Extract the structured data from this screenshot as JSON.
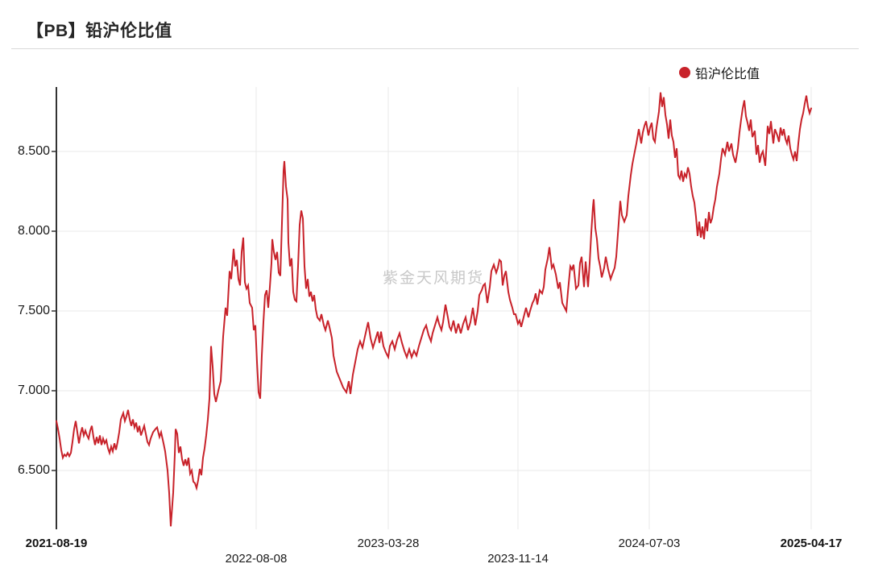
{
  "header": {
    "title": "【PB】铅沪伦比值"
  },
  "legend": {
    "label": "铅沪伦比值",
    "marker_color": "#c8222a"
  },
  "watermark": {
    "text": "紫金天风期货"
  },
  "colors": {
    "line": "#c8222a",
    "grid": "#e9e9e9",
    "axis": "#333333",
    "background": "#ffffff"
  },
  "chart_data": {
    "type": "line",
    "title": "【PB】铅沪伦比值",
    "series_name": "铅沪伦比值",
    "line_color": "#c8222a",
    "grid": true,
    "legend_position": "top-right",
    "x_axis": {
      "kind": "time",
      "start_date": "2021-08-19",
      "end_date": "2025-04-17",
      "d_range": [
        0,
        937
      ],
      "ticks": [
        {
          "label": "2021-08-19",
          "d": 0,
          "bold": true,
          "row": 1
        },
        {
          "label": "2022-08-08",
          "d": 248,
          "bold": false,
          "row": 2
        },
        {
          "label": "2023-03-28",
          "d": 412,
          "bold": false,
          "row": 1
        },
        {
          "label": "2023-11-14",
          "d": 573,
          "bold": false,
          "row": 2
        },
        {
          "label": "2024-07-03",
          "d": 736,
          "bold": false,
          "row": 1
        },
        {
          "label": "2025-04-17",
          "d": 937,
          "bold": true,
          "row": 1
        }
      ]
    },
    "y_axis": {
      "tick_labels": [
        "8.500",
        "8.000",
        "7.500",
        "7.000",
        "6.500"
      ],
      "tick_values": [
        8.5,
        8.0,
        7.5,
        7.0,
        6.5
      ],
      "min": 6.1,
      "max": 8.9
    },
    "points": [
      [
        0,
        6.81
      ],
      [
        2,
        6.76
      ],
      [
        4,
        6.7
      ],
      [
        6,
        6.63
      ],
      [
        8,
        6.58
      ],
      [
        10,
        6.6
      ],
      [
        12,
        6.59
      ],
      [
        14,
        6.61
      ],
      [
        16,
        6.59
      ],
      [
        18,
        6.61
      ],
      [
        20,
        6.68
      ],
      [
        22,
        6.76
      ],
      [
        24,
        6.81
      ],
      [
        26,
        6.74
      ],
      [
        28,
        6.67
      ],
      [
        30,
        6.73
      ],
      [
        32,
        6.77
      ],
      [
        34,
        6.72
      ],
      [
        36,
        6.75
      ],
      [
        38,
        6.72
      ],
      [
        40,
        6.7
      ],
      [
        42,
        6.75
      ],
      [
        44,
        6.78
      ],
      [
        46,
        6.71
      ],
      [
        48,
        6.66
      ],
      [
        50,
        6.71
      ],
      [
        52,
        6.67
      ],
      [
        54,
        6.72
      ],
      [
        56,
        6.66
      ],
      [
        58,
        6.7
      ],
      [
        60,
        6.67
      ],
      [
        62,
        6.69
      ],
      [
        64,
        6.64
      ],
      [
        66,
        6.61
      ],
      [
        68,
        6.65
      ],
      [
        70,
        6.62
      ],
      [
        72,
        6.67
      ],
      [
        74,
        6.63
      ],
      [
        76,
        6.68
      ],
      [
        78,
        6.74
      ],
      [
        80,
        6.82
      ],
      [
        83,
        6.86
      ],
      [
        85,
        6.81
      ],
      [
        87,
        6.84
      ],
      [
        89,
        6.88
      ],
      [
        91,
        6.82
      ],
      [
        93,
        6.78
      ],
      [
        95,
        6.82
      ],
      [
        97,
        6.77
      ],
      [
        99,
        6.8
      ],
      [
        101,
        6.74
      ],
      [
        103,
        6.78
      ],
      [
        105,
        6.72
      ],
      [
        107,
        6.75
      ],
      [
        109,
        6.78
      ],
      [
        111,
        6.73
      ],
      [
        113,
        6.68
      ],
      [
        115,
        6.66
      ],
      [
        117,
        6.7
      ],
      [
        120,
        6.74
      ],
      [
        123,
        6.76
      ],
      [
        125,
        6.77
      ],
      [
        128,
        6.71
      ],
      [
        130,
        6.74
      ],
      [
        133,
        6.67
      ],
      [
        135,
        6.62
      ],
      [
        138,
        6.5
      ],
      [
        140,
        6.36
      ],
      [
        142,
        6.15
      ],
      [
        145,
        6.36
      ],
      [
        147,
        6.6
      ],
      [
        148,
        6.76
      ],
      [
        150,
        6.73
      ],
      [
        152,
        6.61
      ],
      [
        154,
        6.65
      ],
      [
        156,
        6.57
      ],
      [
        158,
        6.53
      ],
      [
        160,
        6.57
      ],
      [
        162,
        6.53
      ],
      [
        164,
        6.58
      ],
      [
        166,
        6.48
      ],
      [
        168,
        6.5
      ],
      [
        170,
        6.43
      ],
      [
        172,
        6.42
      ],
      [
        174,
        6.39
      ],
      [
        176,
        6.44
      ],
      [
        178,
        6.51
      ],
      [
        180,
        6.47
      ],
      [
        182,
        6.58
      ],
      [
        184,
        6.64
      ],
      [
        186,
        6.72
      ],
      [
        188,
        6.82
      ],
      [
        190,
        6.95
      ],
      [
        192,
        7.28
      ],
      [
        194,
        7.15
      ],
      [
        196,
        6.98
      ],
      [
        198,
        6.93
      ],
      [
        201,
        7.0
      ],
      [
        204,
        7.06
      ],
      [
        207,
        7.34
      ],
      [
        210,
        7.52
      ],
      [
        212,
        7.47
      ],
      [
        215,
        7.75
      ],
      [
        217,
        7.7
      ],
      [
        220,
        7.89
      ],
      [
        222,
        7.78
      ],
      [
        224,
        7.82
      ],
      [
        226,
        7.7
      ],
      [
        228,
        7.66
      ],
      [
        230,
        7.87
      ],
      [
        232,
        7.96
      ],
      [
        234,
        7.68
      ],
      [
        236,
        7.64
      ],
      [
        238,
        7.66
      ],
      [
        240,
        7.55
      ],
      [
        243,
        7.52
      ],
      [
        245,
        7.38
      ],
      [
        247,
        7.41
      ],
      [
        249,
        7.18
      ],
      [
        251,
        6.99
      ],
      [
        253,
        6.95
      ],
      [
        255,
        7.22
      ],
      [
        257,
        7.43
      ],
      [
        259,
        7.6
      ],
      [
        261,
        7.63
      ],
      [
        263,
        7.52
      ],
      [
        265,
        7.65
      ],
      [
        267,
        7.8
      ],
      [
        268,
        7.95
      ],
      [
        270,
        7.87
      ],
      [
        272,
        7.82
      ],
      [
        274,
        7.87
      ],
      [
        276,
        7.74
      ],
      [
        278,
        7.72
      ],
      [
        280,
        8.05
      ],
      [
        282,
        8.38
      ],
      [
        283,
        8.44
      ],
      [
        285,
        8.28
      ],
      [
        287,
        8.2
      ],
      [
        288,
        7.93
      ],
      [
        290,
        7.78
      ],
      [
        292,
        7.83
      ],
      [
        294,
        7.62
      ],
      [
        296,
        7.57
      ],
      [
        298,
        7.56
      ],
      [
        300,
        7.78
      ],
      [
        302,
        8.04
      ],
      [
        304,
        8.13
      ],
      [
        306,
        8.08
      ],
      [
        308,
        7.78
      ],
      [
        310,
        7.64
      ],
      [
        312,
        7.7
      ],
      [
        314,
        7.59
      ],
      [
        316,
        7.62
      ],
      [
        318,
        7.56
      ],
      [
        320,
        7.6
      ],
      [
        322,
        7.51
      ],
      [
        324,
        7.46
      ],
      [
        327,
        7.44
      ],
      [
        329,
        7.48
      ],
      [
        332,
        7.41
      ],
      [
        334,
        7.38
      ],
      [
        337,
        7.44
      ],
      [
        339,
        7.4
      ],
      [
        342,
        7.33
      ],
      [
        344,
        7.22
      ],
      [
        348,
        7.12
      ],
      [
        352,
        7.07
      ],
      [
        356,
        7.02
      ],
      [
        360,
        6.99
      ],
      [
        363,
        7.06
      ],
      [
        365,
        6.98
      ],
      [
        368,
        7.1
      ],
      [
        371,
        7.18
      ],
      [
        374,
        7.26
      ],
      [
        377,
        7.31
      ],
      [
        380,
        7.27
      ],
      [
        383,
        7.34
      ],
      [
        387,
        7.43
      ],
      [
        390,
        7.33
      ],
      [
        393,
        7.27
      ],
      [
        396,
        7.32
      ],
      [
        399,
        7.37
      ],
      [
        401,
        7.3
      ],
      [
        403,
        7.37
      ],
      [
        406,
        7.28
      ],
      [
        409,
        7.24
      ],
      [
        412,
        7.21
      ],
      [
        414,
        7.28
      ],
      [
        417,
        7.31
      ],
      [
        420,
        7.26
      ],
      [
        423,
        7.32
      ],
      [
        426,
        7.36
      ],
      [
        429,
        7.3
      ],
      [
        432,
        7.25
      ],
      [
        435,
        7.21
      ],
      [
        438,
        7.26
      ],
      [
        441,
        7.21
      ],
      [
        444,
        7.25
      ],
      [
        447,
        7.22
      ],
      [
        450,
        7.28
      ],
      [
        453,
        7.33
      ],
      [
        456,
        7.38
      ],
      [
        459,
        7.41
      ],
      [
        462,
        7.35
      ],
      [
        465,
        7.31
      ],
      [
        467,
        7.36
      ],
      [
        470,
        7.41
      ],
      [
        473,
        7.46
      ],
      [
        475,
        7.42
      ],
      [
        478,
        7.38
      ],
      [
        480,
        7.43
      ],
      [
        483,
        7.54
      ],
      [
        486,
        7.46
      ],
      [
        488,
        7.4
      ],
      [
        490,
        7.38
      ],
      [
        493,
        7.44
      ],
      [
        496,
        7.36
      ],
      [
        499,
        7.42
      ],
      [
        502,
        7.36
      ],
      [
        505,
        7.42
      ],
      [
        508,
        7.46
      ],
      [
        511,
        7.38
      ],
      [
        514,
        7.43
      ],
      [
        517,
        7.52
      ],
      [
        520,
        7.41
      ],
      [
        523,
        7.5
      ],
      [
        525,
        7.6
      ],
      [
        528,
        7.63
      ],
      [
        530,
        7.66
      ],
      [
        532,
        7.67
      ],
      [
        535,
        7.55
      ],
      [
        538,
        7.65
      ],
      [
        540,
        7.75
      ],
      [
        543,
        7.79
      ],
      [
        546,
        7.74
      ],
      [
        548,
        7.77
      ],
      [
        550,
        7.82
      ],
      [
        552,
        7.81
      ],
      [
        554,
        7.66
      ],
      [
        556,
        7.72
      ],
      [
        558,
        7.75
      ],
      [
        561,
        7.62
      ],
      [
        563,
        7.57
      ],
      [
        566,
        7.52
      ],
      [
        568,
        7.48
      ],
      [
        570,
        7.48
      ],
      [
        573,
        7.42
      ],
      [
        575,
        7.44
      ],
      [
        577,
        7.4
      ],
      [
        580,
        7.46
      ],
      [
        583,
        7.52
      ],
      [
        586,
        7.46
      ],
      [
        588,
        7.5
      ],
      [
        591,
        7.55
      ],
      [
        593,
        7.57
      ],
      [
        595,
        7.61
      ],
      [
        597,
        7.54
      ],
      [
        600,
        7.63
      ],
      [
        603,
        7.61
      ],
      [
        605,
        7.65
      ],
      [
        607,
        7.76
      ],
      [
        610,
        7.83
      ],
      [
        612,
        7.9
      ],
      [
        615,
        7.77
      ],
      [
        617,
        7.79
      ],
      [
        620,
        7.73
      ],
      [
        623,
        7.64
      ],
      [
        625,
        7.68
      ],
      [
        628,
        7.55
      ],
      [
        630,
        7.53
      ],
      [
        633,
        7.5
      ],
      [
        635,
        7.62
      ],
      [
        638,
        7.78
      ],
      [
        640,
        7.76
      ],
      [
        642,
        7.79
      ],
      [
        645,
        7.64
      ],
      [
        648,
        7.66
      ],
      [
        650,
        7.8
      ],
      [
        652,
        7.84
      ],
      [
        655,
        7.65
      ],
      [
        657,
        7.81
      ],
      [
        660,
        7.65
      ],
      [
        662,
        7.8
      ],
      [
        664,
        7.99
      ],
      [
        666,
        8.15
      ],
      [
        667,
        8.2
      ],
      [
        669,
        8.02
      ],
      [
        671,
        7.95
      ],
      [
        673,
        7.83
      ],
      [
        675,
        7.78
      ],
      [
        677,
        7.71
      ],
      [
        680,
        7.77
      ],
      [
        682,
        7.84
      ],
      [
        685,
        7.76
      ],
      [
        688,
        7.7
      ],
      [
        690,
        7.73
      ],
      [
        693,
        7.77
      ],
      [
        695,
        7.84
      ],
      [
        698,
        8.05
      ],
      [
        700,
        8.19
      ],
      [
        702,
        8.1
      ],
      [
        705,
        8.06
      ],
      [
        708,
        8.1
      ],
      [
        710,
        8.22
      ],
      [
        713,
        8.35
      ],
      [
        715,
        8.42
      ],
      [
        718,
        8.5
      ],
      [
        720,
        8.55
      ],
      [
        723,
        8.64
      ],
      [
        726,
        8.55
      ],
      [
        728,
        8.62
      ],
      [
        730,
        8.66
      ],
      [
        732,
        8.69
      ],
      [
        735,
        8.6
      ],
      [
        737,
        8.65
      ],
      [
        739,
        8.68
      ],
      [
        741,
        8.58
      ],
      [
        743,
        8.56
      ],
      [
        745,
        8.65
      ],
      [
        748,
        8.75
      ],
      [
        750,
        8.87
      ],
      [
        752,
        8.78
      ],
      [
        754,
        8.84
      ],
      [
        756,
        8.73
      ],
      [
        758,
        8.67
      ],
      [
        760,
        8.58
      ],
      [
        762,
        8.7
      ],
      [
        764,
        8.6
      ],
      [
        766,
        8.56
      ],
      [
        768,
        8.46
      ],
      [
        770,
        8.52
      ],
      [
        772,
        8.35
      ],
      [
        774,
        8.33
      ],
      [
        776,
        8.38
      ],
      [
        778,
        8.31
      ],
      [
        780,
        8.36
      ],
      [
        782,
        8.34
      ],
      [
        784,
        8.4
      ],
      [
        786,
        8.36
      ],
      [
        788,
        8.28
      ],
      [
        790,
        8.22
      ],
      [
        792,
        8.18
      ],
      [
        794,
        8.09
      ],
      [
        796,
        7.97
      ],
      [
        798,
        8.06
      ],
      [
        800,
        7.96
      ],
      [
        802,
        8.03
      ],
      [
        804,
        7.95
      ],
      [
        806,
        8.08
      ],
      [
        808,
        8.0
      ],
      [
        810,
        8.12
      ],
      [
        812,
        8.05
      ],
      [
        814,
        8.08
      ],
      [
        816,
        8.15
      ],
      [
        818,
        8.2
      ],
      [
        820,
        8.28
      ],
      [
        823,
        8.36
      ],
      [
        825,
        8.45
      ],
      [
        827,
        8.52
      ],
      [
        830,
        8.48
      ],
      [
        833,
        8.56
      ],
      [
        835,
        8.5
      ],
      [
        838,
        8.55
      ],
      [
        840,
        8.48
      ],
      [
        843,
        8.43
      ],
      [
        846,
        8.52
      ],
      [
        848,
        8.62
      ],
      [
        850,
        8.7
      ],
      [
        852,
        8.77
      ],
      [
        854,
        8.82
      ],
      [
        856,
        8.72
      ],
      [
        858,
        8.68
      ],
      [
        860,
        8.63
      ],
      [
        862,
        8.7
      ],
      [
        864,
        8.59
      ],
      [
        867,
        8.63
      ],
      [
        869,
        8.48
      ],
      [
        871,
        8.54
      ],
      [
        873,
        8.43
      ],
      [
        875,
        8.48
      ],
      [
        877,
        8.5
      ],
      [
        880,
        8.41
      ],
      [
        883,
        8.66
      ],
      [
        885,
        8.61
      ],
      [
        887,
        8.69
      ],
      [
        890,
        8.55
      ],
      [
        892,
        8.64
      ],
      [
        895,
        8.6
      ],
      [
        897,
        8.56
      ],
      [
        899,
        8.65
      ],
      [
        901,
        8.6
      ],
      [
        903,
        8.64
      ],
      [
        905,
        8.58
      ],
      [
        907,
        8.55
      ],
      [
        909,
        8.6
      ],
      [
        911,
        8.52
      ],
      [
        913,
        8.48
      ],
      [
        915,
        8.45
      ],
      [
        917,
        8.5
      ],
      [
        919,
        8.44
      ],
      [
        921,
        8.55
      ],
      [
        923,
        8.64
      ],
      [
        925,
        8.7
      ],
      [
        927,
        8.74
      ],
      [
        929,
        8.8
      ],
      [
        931,
        8.85
      ],
      [
        933,
        8.78
      ],
      [
        935,
        8.74
      ],
      [
        937,
        8.77
      ]
    ]
  }
}
